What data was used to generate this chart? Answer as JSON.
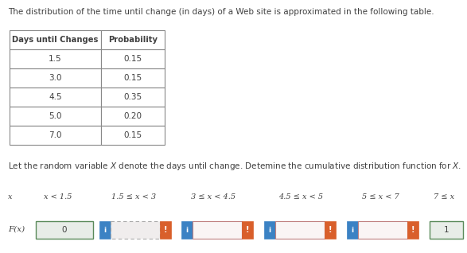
{
  "title": "The distribution of the time until change (in days) of a Web site is approximated in the following table.",
  "table_headers": [
    "Days until Changes",
    "Probability"
  ],
  "table_rows": [
    [
      "1.5",
      "0.15"
    ],
    [
      "3.0",
      "0.15"
    ],
    [
      "4.5",
      "0.35"
    ],
    [
      "5.0",
      "0.20"
    ],
    [
      "7.0",
      "0.15"
    ]
  ],
  "paragraph": "Let the random variable $X$ denote the days until change. Detemine the cumulative distribution function for $X$.",
  "x_labels": [
    "x",
    "x < 1.5",
    "1.5 ≤ x < 3",
    "3 ≤ x < 4.5",
    "4.5 ≤ x < 5",
    "5 ≤ x < 7",
    "7 ≤ x"
  ],
  "fx_label": "F(x)",
  "bg_color": "#ffffff",
  "text_color": "#404040",
  "table_border_color": "#888888",
  "box_green_border": "#5a8a5a",
  "box_green_bg": "#e8ede8",
  "box_blue": "#3b82c4",
  "box_orange": "#d95f2b",
  "box_mid_bg": "#faf5f5",
  "box_mid_border": "#c08080",
  "box_dash_bg": "#f0eded",
  "box_dash_border": "#aaaaaa"
}
